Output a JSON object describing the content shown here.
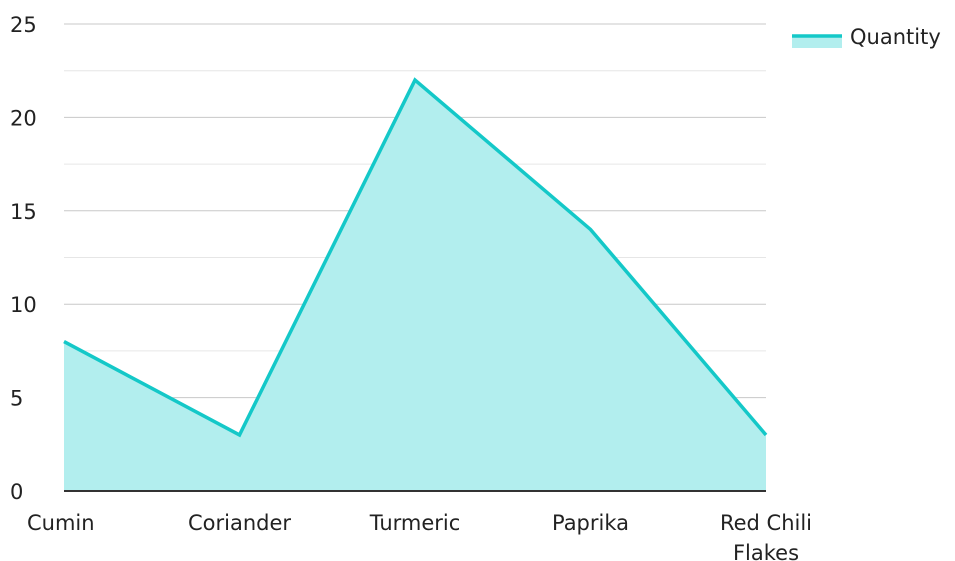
{
  "chart_data": {
    "type": "area",
    "categories": [
      "Cumin",
      "Coriander",
      "Turmeric",
      "Paprika",
      "Red Chili Flakes"
    ],
    "category_lines": [
      [
        "Cumin"
      ],
      [
        "Coriander"
      ],
      [
        "Turmeric"
      ],
      [
        "Paprika"
      ],
      [
        "Red Chili",
        "Flakes"
      ]
    ],
    "series": [
      {
        "name": "Quantity",
        "values": [
          8,
          3,
          22,
          14,
          3
        ]
      }
    ],
    "ylim": [
      0,
      25
    ],
    "yticks": [
      0,
      5,
      10,
      15,
      20,
      25
    ],
    "grid": true,
    "legend_position": "top-right",
    "title": "",
    "xlabel": "",
    "ylabel": "",
    "colors": {
      "line": "#14c8c8",
      "fill": "#b2eeee",
      "grid_major": "#c8c8c8",
      "grid_minor": "#e6e6e6",
      "axis": "#333333"
    }
  }
}
